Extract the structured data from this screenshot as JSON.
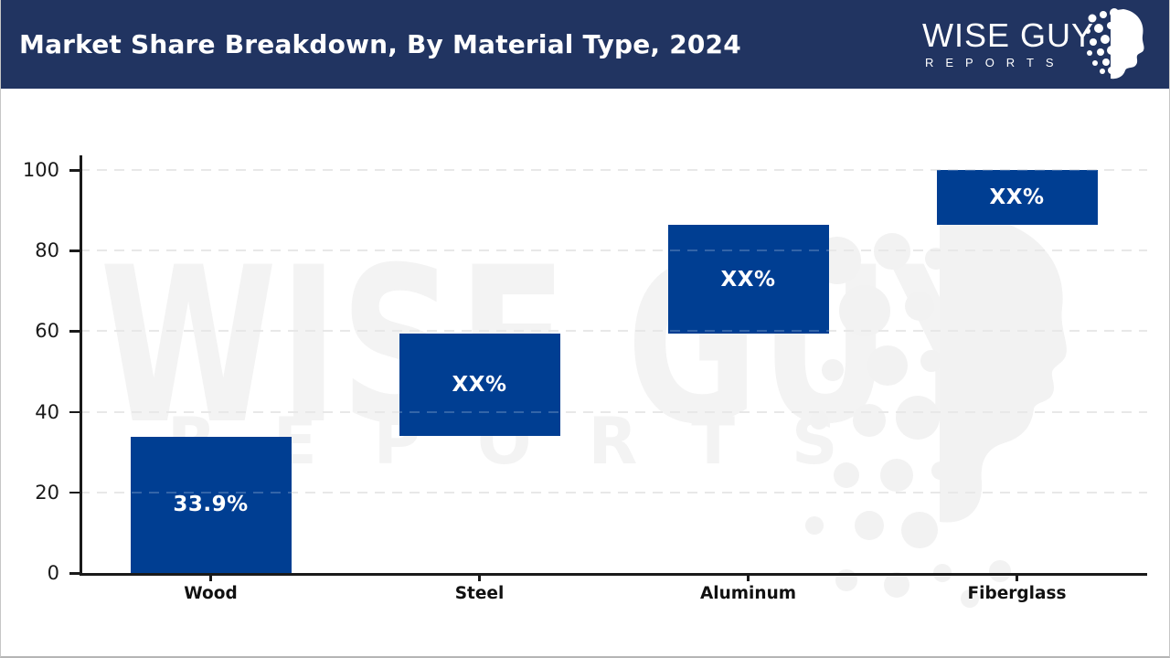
{
  "header": {
    "title": "Market Share Breakdown, By Material Type, 2024",
    "logo": {
      "wordmark": "WISE GUY",
      "subtext": "REPORTS"
    }
  },
  "watermark": {
    "big_text": "WISE GUY",
    "sub_text": "REPORTS"
  },
  "chart_data": {
    "type": "bar",
    "subtype": "waterfall",
    "title": "Market Share Breakdown, By Material Type, 2024",
    "categories": [
      "Wood",
      "Steel",
      "Aluminum",
      "Fiberglass"
    ],
    "segments": [
      {
        "category": "Wood",
        "start": 0,
        "end": 33.9,
        "label": "33.9%"
      },
      {
        "category": "Steel",
        "start": 33.9,
        "end": 59.4,
        "label": "XX%"
      },
      {
        "category": "Aluminum",
        "start": 59.4,
        "end": 86.4,
        "label": "XX%"
      },
      {
        "category": "Fiberglass",
        "start": 86.4,
        "end": 100,
        "label": "XX%"
      }
    ],
    "y_ticks": [
      0,
      20,
      40,
      60,
      80,
      100
    ],
    "ylim": [
      0,
      100
    ],
    "xlabel": "",
    "ylabel": "",
    "grid": "horizontal-dashed",
    "legend": "none"
  },
  "colors": {
    "header_bg": "#213461",
    "bar": "#003E92",
    "axis": "#1a1a1a",
    "grid": "#e2e2e2",
    "watermark": "#f3f3f3",
    "value_label": "#ffffff"
  }
}
